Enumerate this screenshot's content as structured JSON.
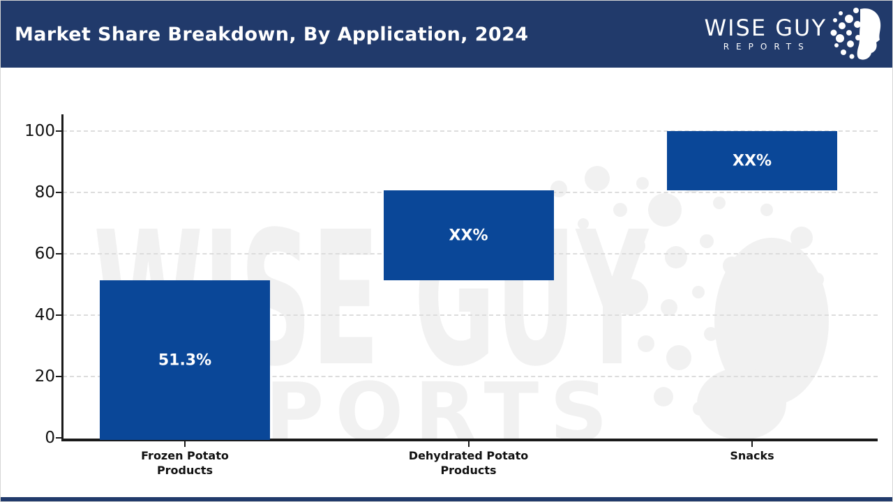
{
  "header": {
    "title": "Market Share Breakdown, By Application, 2024",
    "logo": {
      "line1": "WISE GUY",
      "line2": "REPORTS"
    }
  },
  "watermark": {
    "line1": "WISE GUY",
    "line2": "REPORTS"
  },
  "colors": {
    "header_navy": "#213A6B",
    "bar_blue": "#0A4798",
    "grid_gray": "#DCDCDC",
    "axis_dark": "#1A1A1A",
    "watermark_gray": "#F1F1F1",
    "label_text": "#111111",
    "title_text": "#FFFFFF"
  },
  "chart_data": {
    "type": "bar",
    "subtype": "waterfall-floating-bars",
    "title": "Market Share Breakdown, By Application, 2024",
    "xlabel": "",
    "ylabel": "",
    "categories": [
      "Frozen Potato Products",
      "Dehydrated Potato Products",
      "Snacks"
    ],
    "category_label_lines": [
      [
        "Frozen Potato",
        "Products"
      ],
      [
        "Dehydrated Potato",
        "Products"
      ],
      [
        "Snacks"
      ]
    ],
    "segments": [
      {
        "category": "Frozen Potato Products",
        "start": 0,
        "end": 51.3,
        "label": "51.3%"
      },
      {
        "category": "Dehydrated Potato Products",
        "start": 51.3,
        "end": 80.7,
        "label": "XX%"
      },
      {
        "category": "Snacks",
        "start": 80.7,
        "end": 100,
        "label": "XX%"
      }
    ],
    "yticks": [
      0,
      20,
      40,
      60,
      80,
      100
    ],
    "ylim": [
      0,
      105
    ],
    "grid": "horizontal-dashed",
    "legend": "none"
  }
}
